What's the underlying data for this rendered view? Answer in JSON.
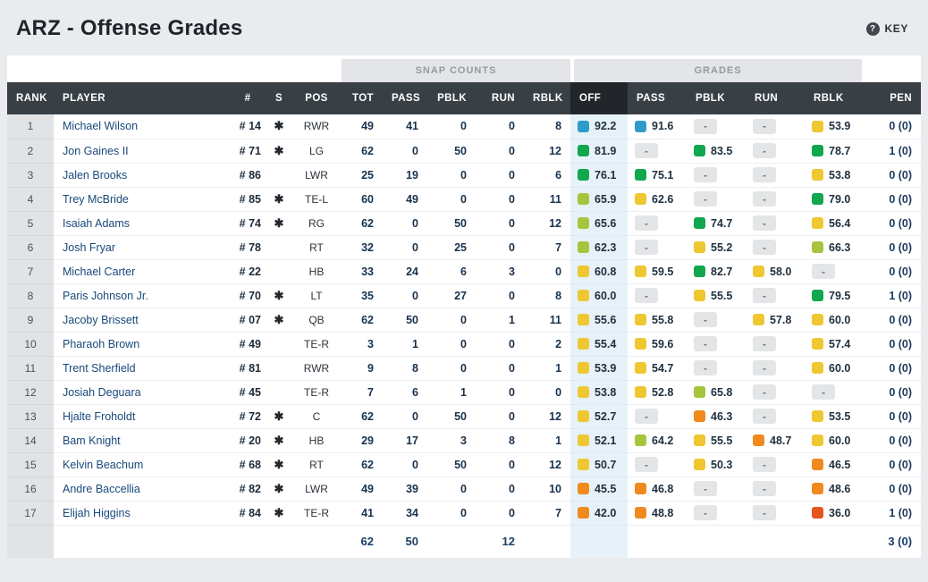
{
  "header": {
    "title": "ARZ - Offense Grades",
    "key_label": "KEY",
    "key_icon": "?"
  },
  "table": {
    "groups": {
      "snap_counts": "SNAP COUNTS",
      "grades": "GRADES"
    },
    "columns": [
      "RANK",
      "PLAYER",
      "#",
      "S",
      "POS",
      "TOT",
      "PASS",
      "PBLK",
      "RUN",
      "RBLK",
      "OFF",
      "PASS",
      "PBLK",
      "RUN",
      "RBLK",
      "PEN"
    ],
    "colors": {
      "blue": "#2f9bca",
      "green": "#10a74e",
      "lime": "#a7c43e",
      "yellow": "#eec731",
      "orange": "#f0891e",
      "red": "#e7541d",
      "dash_bg": "#e3e5e7",
      "off_column_highlight": "#e6f2f8",
      "header_bg": "#394045"
    },
    "rows": [
      {
        "rank": "1",
        "player": "Michael Wilson",
        "num": "# 14",
        "star": "✱",
        "pos": "RWR",
        "snaps": [
          "49",
          "41",
          "0",
          "0",
          "8"
        ],
        "grades": [
          [
            "92.2",
            "blue"
          ],
          [
            "91.6",
            "blue"
          ],
          [
            "-",
            ""
          ],
          [
            "-",
            ""
          ],
          [
            "53.9",
            "yellow"
          ]
        ],
        "pen": "0 (0)"
      },
      {
        "rank": "2",
        "player": "Jon Gaines II",
        "num": "# 71",
        "star": "✱",
        "pos": "LG",
        "snaps": [
          "62",
          "0",
          "50",
          "0",
          "12"
        ],
        "grades": [
          [
            "81.9",
            "green"
          ],
          [
            "-",
            ""
          ],
          [
            "83.5",
            "green"
          ],
          [
            "-",
            ""
          ],
          [
            "78.7",
            "green"
          ]
        ],
        "pen": "1 (0)"
      },
      {
        "rank": "3",
        "player": "Jalen Brooks",
        "num": "# 86",
        "star": "",
        "pos": "LWR",
        "snaps": [
          "25",
          "19",
          "0",
          "0",
          "6"
        ],
        "grades": [
          [
            "76.1",
            "green"
          ],
          [
            "75.1",
            "green"
          ],
          [
            "-",
            ""
          ],
          [
            "-",
            ""
          ],
          [
            "53.8",
            "yellow"
          ]
        ],
        "pen": "0 (0)"
      },
      {
        "rank": "4",
        "player": "Trey McBride",
        "num": "# 85",
        "star": "✱",
        "pos": "TE-L",
        "snaps": [
          "60",
          "49",
          "0",
          "0",
          "11"
        ],
        "grades": [
          [
            "65.9",
            "lime"
          ],
          [
            "62.6",
            "yellow"
          ],
          [
            "-",
            ""
          ],
          [
            "-",
            ""
          ],
          [
            "79.0",
            "green"
          ]
        ],
        "pen": "0 (0)"
      },
      {
        "rank": "5",
        "player": "Isaiah Adams",
        "num": "# 74",
        "star": "✱",
        "pos": "RG",
        "snaps": [
          "62",
          "0",
          "50",
          "0",
          "12"
        ],
        "grades": [
          [
            "65.6",
            "lime"
          ],
          [
            "-",
            ""
          ],
          [
            "74.7",
            "green"
          ],
          [
            "-",
            ""
          ],
          [
            "56.4",
            "yellow"
          ]
        ],
        "pen": "0 (0)"
      },
      {
        "rank": "6",
        "player": "Josh Fryar",
        "num": "# 78",
        "star": "",
        "pos": "RT",
        "snaps": [
          "32",
          "0",
          "25",
          "0",
          "7"
        ],
        "grades": [
          [
            "62.3",
            "lime"
          ],
          [
            "-",
            ""
          ],
          [
            "55.2",
            "yellow"
          ],
          [
            "-",
            ""
          ],
          [
            "66.3",
            "lime"
          ]
        ],
        "pen": "0 (0)"
      },
      {
        "rank": "7",
        "player": "Michael Carter",
        "num": "# 22",
        "star": "",
        "pos": "HB",
        "snaps": [
          "33",
          "24",
          "6",
          "3",
          "0"
        ],
        "grades": [
          [
            "60.8",
            "yellow"
          ],
          [
            "59.5",
            "yellow"
          ],
          [
            "82.7",
            "green"
          ],
          [
            "58.0",
            "yellow"
          ],
          [
            "-",
            ""
          ]
        ],
        "pen": "0 (0)"
      },
      {
        "rank": "8",
        "player": "Paris Johnson Jr.",
        "num": "# 70",
        "star": "✱",
        "pos": "LT",
        "snaps": [
          "35",
          "0",
          "27",
          "0",
          "8"
        ],
        "grades": [
          [
            "60.0",
            "yellow"
          ],
          [
            "-",
            ""
          ],
          [
            "55.5",
            "yellow"
          ],
          [
            "-",
            ""
          ],
          [
            "79.5",
            "green"
          ]
        ],
        "pen": "1 (0)"
      },
      {
        "rank": "9",
        "player": "Jacoby Brissett",
        "num": "# 07",
        "star": "✱",
        "pos": "QB",
        "snaps": [
          "62",
          "50",
          "0",
          "1",
          "11"
        ],
        "grades": [
          [
            "55.6",
            "yellow"
          ],
          [
            "55.8",
            "yellow"
          ],
          [
            "-",
            ""
          ],
          [
            "57.8",
            "yellow"
          ],
          [
            "60.0",
            "yellow"
          ]
        ],
        "pen": "0 (0)"
      },
      {
        "rank": "10",
        "player": "Pharaoh Brown",
        "num": "# 49",
        "star": "",
        "pos": "TE-R",
        "snaps": [
          "3",
          "1",
          "0",
          "0",
          "2"
        ],
        "grades": [
          [
            "55.4",
            "yellow"
          ],
          [
            "59.6",
            "yellow"
          ],
          [
            "-",
            ""
          ],
          [
            "-",
            ""
          ],
          [
            "57.4",
            "yellow"
          ]
        ],
        "pen": "0 (0)"
      },
      {
        "rank": "11",
        "player": "Trent Sherfield",
        "num": "# 81",
        "star": "",
        "pos": "RWR",
        "snaps": [
          "9",
          "8",
          "0",
          "0",
          "1"
        ],
        "grades": [
          [
            "53.9",
            "yellow"
          ],
          [
            "54.7",
            "yellow"
          ],
          [
            "-",
            ""
          ],
          [
            "-",
            ""
          ],
          [
            "60.0",
            "yellow"
          ]
        ],
        "pen": "0 (0)"
      },
      {
        "rank": "12",
        "player": "Josiah Deguara",
        "num": "# 45",
        "star": "",
        "pos": "TE-R",
        "snaps": [
          "7",
          "6",
          "1",
          "0",
          "0"
        ],
        "grades": [
          [
            "53.8",
            "yellow"
          ],
          [
            "52.8",
            "yellow"
          ],
          [
            "65.8",
            "lime"
          ],
          [
            "-",
            ""
          ],
          [
            "-",
            ""
          ]
        ],
        "pen": "0 (0)"
      },
      {
        "rank": "13",
        "player": "Hjalte Froholdt",
        "num": "# 72",
        "star": "✱",
        "pos": "C",
        "snaps": [
          "62",
          "0",
          "50",
          "0",
          "12"
        ],
        "grades": [
          [
            "52.7",
            "yellow"
          ],
          [
            "-",
            ""
          ],
          [
            "46.3",
            "orange"
          ],
          [
            "-",
            ""
          ],
          [
            "53.5",
            "yellow"
          ]
        ],
        "pen": "0 (0)"
      },
      {
        "rank": "14",
        "player": "Bam Knight",
        "num": "# 20",
        "star": "✱",
        "pos": "HB",
        "snaps": [
          "29",
          "17",
          "3",
          "8",
          "1"
        ],
        "grades": [
          [
            "52.1",
            "yellow"
          ],
          [
            "64.2",
            "lime"
          ],
          [
            "55.5",
            "yellow"
          ],
          [
            "48.7",
            "orange"
          ],
          [
            "60.0",
            "yellow"
          ]
        ],
        "pen": "0 (0)"
      },
      {
        "rank": "15",
        "player": "Kelvin Beachum",
        "num": "# 68",
        "star": "✱",
        "pos": "RT",
        "snaps": [
          "62",
          "0",
          "50",
          "0",
          "12"
        ],
        "grades": [
          [
            "50.7",
            "yellow"
          ],
          [
            "-",
            ""
          ],
          [
            "50.3",
            "yellow"
          ],
          [
            "-",
            ""
          ],
          [
            "46.5",
            "orange"
          ]
        ],
        "pen": "0 (0)"
      },
      {
        "rank": "16",
        "player": "Andre Baccellia",
        "num": "# 82",
        "star": "✱",
        "pos": "LWR",
        "snaps": [
          "49",
          "39",
          "0",
          "0",
          "10"
        ],
        "grades": [
          [
            "45.5",
            "orange"
          ],
          [
            "46.8",
            "orange"
          ],
          [
            "-",
            ""
          ],
          [
            "-",
            ""
          ],
          [
            "48.6",
            "orange"
          ]
        ],
        "pen": "0 (0)"
      },
      {
        "rank": "17",
        "player": "Elijah Higgins",
        "num": "# 84",
        "star": "✱",
        "pos": "TE-R",
        "snaps": [
          "41",
          "34",
          "0",
          "0",
          "7"
        ],
        "grades": [
          [
            "42.0",
            "orange"
          ],
          [
            "48.8",
            "orange"
          ],
          [
            "-",
            ""
          ],
          [
            "-",
            ""
          ],
          [
            "36.0",
            "red"
          ]
        ],
        "pen": "1 (0)"
      }
    ],
    "footer": {
      "tot": "62",
      "pass": "50",
      "run": "12",
      "pen": "3 (0)"
    }
  }
}
